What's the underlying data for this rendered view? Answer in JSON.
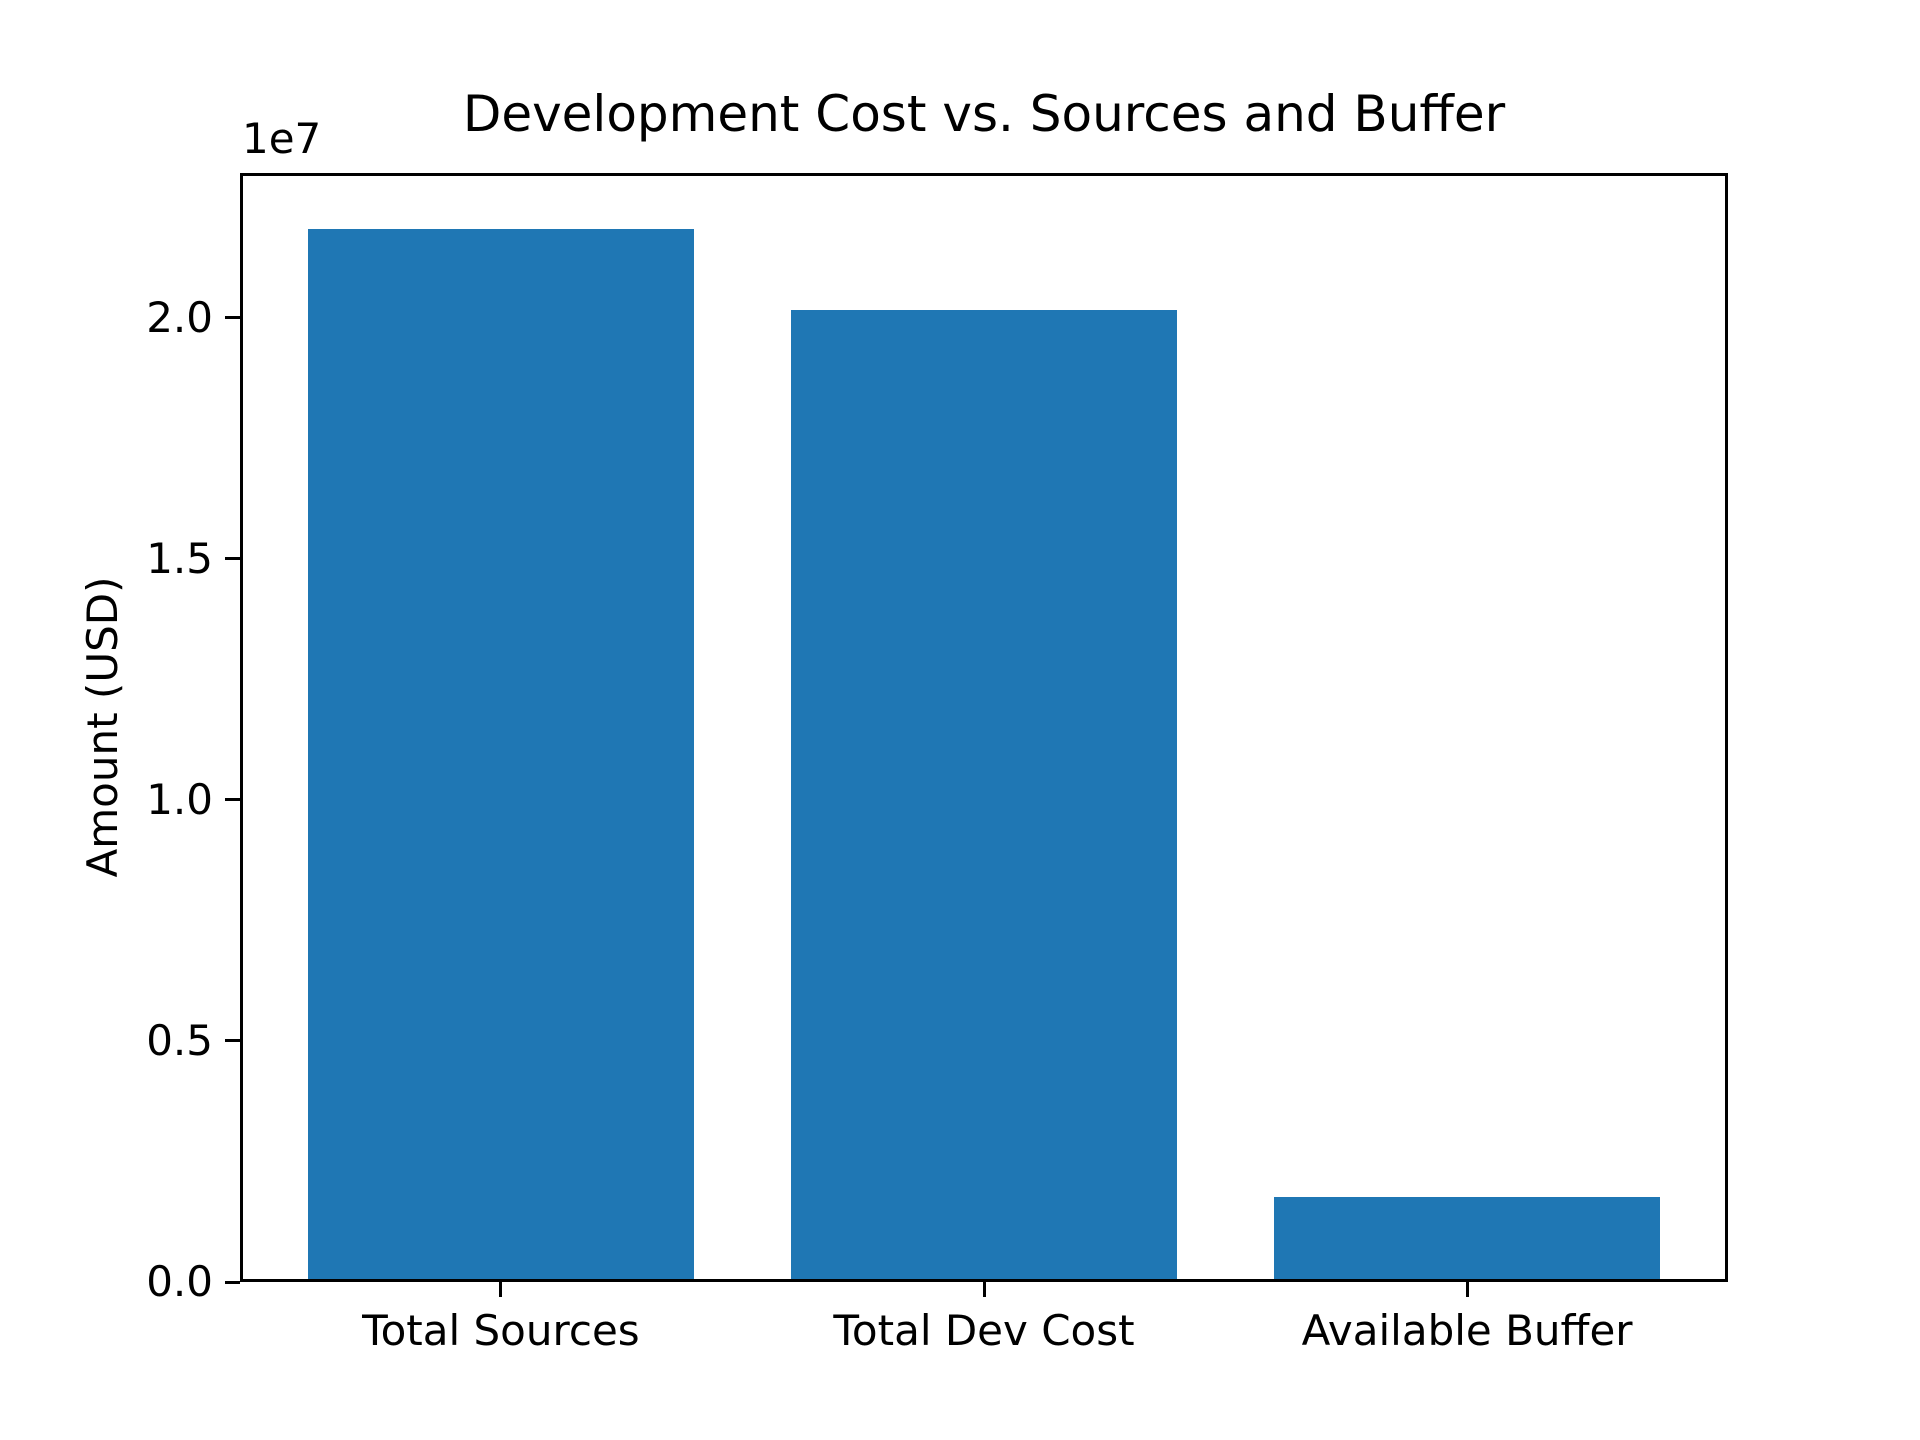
{
  "chart_data": {
    "type": "bar",
    "title": "Development Cost vs. Sources and Buffer",
    "ylabel": "Amount (USD)",
    "xlabel": "",
    "offset_label": "1e7",
    "categories": [
      "Total Sources",
      "Total Dev Cost",
      "Available Buffer"
    ],
    "values": [
      21900000,
      20200000,
      1700000
    ],
    "ylim": [
      0,
      23000000
    ],
    "ytick_values": [
      0,
      5000000,
      10000000,
      15000000,
      20000000
    ],
    "ytick_labels": [
      "0.0",
      "0.5",
      "1.0",
      "1.5",
      "2.0"
    ],
    "bar_color": "#1f77b4",
    "axis_color": "#000000",
    "background_color": "#ffffff",
    "grid": false,
    "legend_position": "none"
  }
}
